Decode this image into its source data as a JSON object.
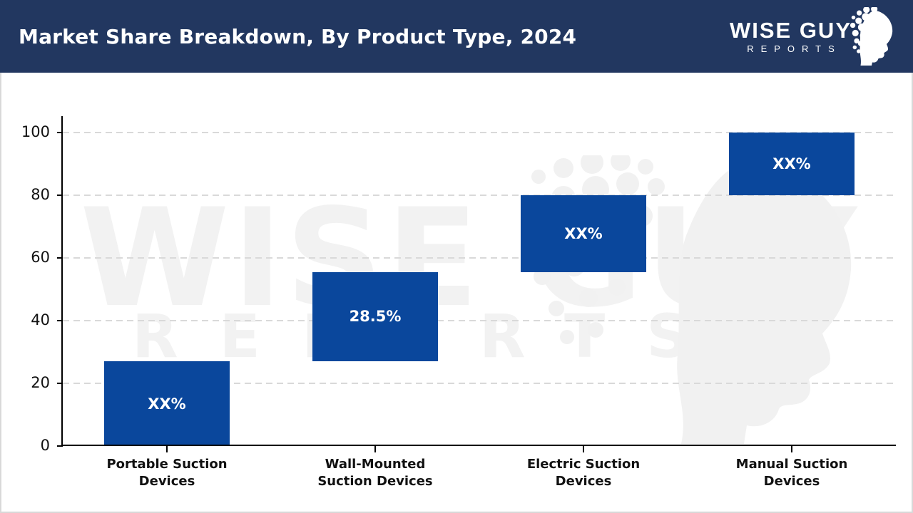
{
  "header": {
    "title": "Market Share Breakdown, By Product Type, 2024",
    "logo": {
      "line1": "WISE GUY",
      "line2": "REPORTS"
    }
  },
  "watermark": {
    "line1": "WISE GUY",
    "line2": "REPORTS"
  },
  "colors": {
    "header_bg": "#223760",
    "bar": "#0a479c",
    "bar_label": "#ffffff",
    "grid": "#d9d9d9",
    "axis": "#000000",
    "watermark": "#f2f2f2",
    "page_border": "#d9d9d9"
  },
  "chart_data": {
    "type": "bar",
    "subtype": "floating-waterfall",
    "title": "Market Share Breakdown, By Product Type, 2024",
    "categories": [
      "Portable Suction Devices",
      "Wall-Mounted Suction Devices",
      "Electric Suction Devices",
      "Manual Suction Devices"
    ],
    "category_label_lines": [
      [
        "Portable Suction",
        "Devices"
      ],
      [
        "Wall-Mounted",
        "Suction Devices"
      ],
      [
        "Electric Suction",
        "Devices"
      ],
      [
        "Manual Suction",
        "Devices"
      ]
    ],
    "series": [
      {
        "name": "Market Share (%)",
        "segments": [
          {
            "category": "Portable Suction Devices",
            "start": 0,
            "end": 27,
            "value": 27,
            "label": "XX%"
          },
          {
            "category": "Wall-Mounted Suction Devices",
            "start": 27,
            "end": 55.5,
            "value": 28.5,
            "label": "28.5%"
          },
          {
            "category": "Electric Suction Devices",
            "start": 55.5,
            "end": 80,
            "value": 24.5,
            "label": "XX%"
          },
          {
            "category": "Manual Suction Devices",
            "start": 80,
            "end": 100,
            "value": 20,
            "label": "XX%"
          }
        ]
      }
    ],
    "ylim": [
      0,
      100
    ],
    "yticks": [
      0,
      20,
      40,
      60,
      80,
      100
    ],
    "xlabel": "",
    "ylabel": "",
    "grid": "dashed-horizontal",
    "legend": "none"
  }
}
